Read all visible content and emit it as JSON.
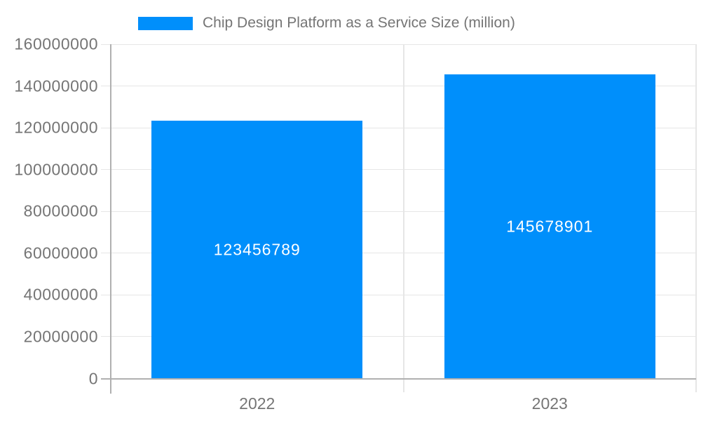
{
  "chart_data": {
    "type": "bar",
    "title": "Chip Design Platform as a Service Size (million)",
    "categories": [
      "2022",
      "2023"
    ],
    "values": [
      123456789,
      145678901
    ],
    "value_labels": [
      "123456789",
      "145678901"
    ],
    "ylim": [
      0,
      160000000
    ],
    "ytick_step": 20000000,
    "ytick_labels": [
      "0",
      "20000000",
      "40000000",
      "60000000",
      "80000000",
      "100000000",
      "120000000",
      "140000000",
      "160000000"
    ],
    "legend_position": "top",
    "grid": true,
    "colors": {
      "bar": "#008FFB",
      "label_text": "#757575",
      "value_text": "#ffffff",
      "gridline": "#e6e6e6",
      "axis_line": "#b0b0b0"
    }
  }
}
